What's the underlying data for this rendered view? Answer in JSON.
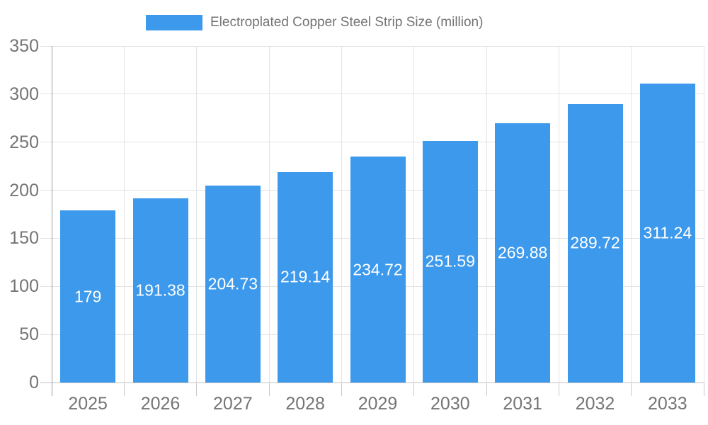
{
  "chart_data": {
    "type": "bar",
    "title": "",
    "legend_label": "Electroplated Copper Steel Strip Size (million)",
    "legend_position": "top",
    "xlabel": "",
    "ylabel": "",
    "categories": [
      "2025",
      "2026",
      "2027",
      "2028",
      "2029",
      "2030",
      "2031",
      "2032",
      "2033"
    ],
    "values": [
      179,
      191.38,
      204.73,
      219.14,
      234.72,
      251.59,
      269.88,
      289.72,
      311.24
    ],
    "bar_labels": [
      "179",
      "191.38",
      "204.73",
      "219.14",
      "234.72",
      "251.59",
      "269.88",
      "289.72",
      "311.24"
    ],
    "ylim": [
      0,
      350
    ],
    "ytick_interval": 50,
    "ytick_labels": [
      "0",
      "50",
      "100",
      "150",
      "200",
      "250",
      "300",
      "350"
    ],
    "grid": true,
    "colors": {
      "background": "#ffffff",
      "bar": "#3C99EB",
      "grid_line": "#E3E3E3",
      "bottom_axis_line": "#C2C2C2",
      "axis_tick": "#C9C9C9",
      "y_axis_line": "#999999",
      "axis_text": "#757575",
      "legend_text": "#737373",
      "bar_label_text": "#FFFFFF"
    }
  }
}
